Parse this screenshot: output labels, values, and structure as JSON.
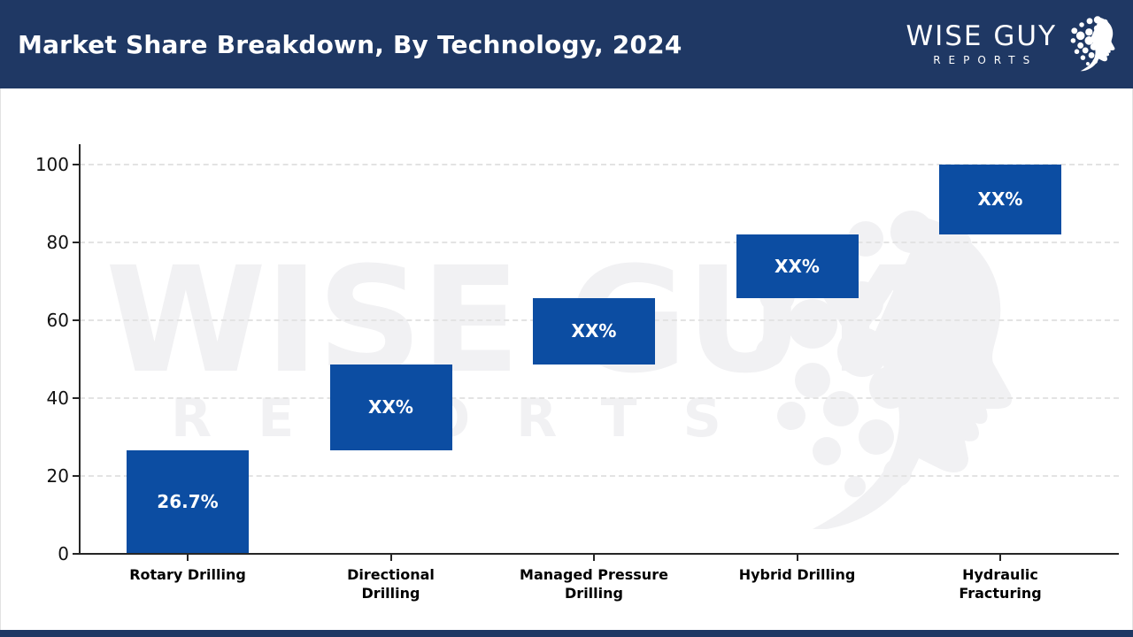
{
  "header": {
    "title": "Market Share Breakdown, By Technology, 2024",
    "logo": {
      "line1": "WISE GUY",
      "line2": "REPORTS"
    }
  },
  "watermark": {
    "line1": "WISE GUY",
    "line2": "REPORTS"
  },
  "colors": {
    "header_bg": "#1f3864",
    "footer_bg": "#1f3864",
    "bar": "#0c4da2",
    "bar_label": "#ffffff",
    "axis": "#262626",
    "gridline": "#e3e3e3",
    "watermark": "#f1f1f3"
  },
  "chart_data": {
    "type": "bar",
    "subtype": "waterfall",
    "title": "Market Share Breakdown, By Technology, 2024",
    "xlabel": "",
    "ylabel": "",
    "ylim": [
      0,
      100
    ],
    "yticks": [
      0,
      20,
      40,
      60,
      80,
      100
    ],
    "grid": "horizontal-dashed",
    "legend": "none",
    "categories": [
      "Rotary Drilling",
      "Directional\nDrilling",
      "Managed Pressure\nDrilling",
      "Hybrid Drilling",
      "Hydraulic\nFracturing"
    ],
    "values": [
      26.7,
      22.0,
      17.0,
      16.4,
      17.9
    ],
    "segments": [
      {
        "category": "Rotary Drilling",
        "start": 0,
        "end": 26.7,
        "label": "26.7%"
      },
      {
        "category": "Directional\nDrilling",
        "start": 26.7,
        "end": 48.7,
        "label": "XX%"
      },
      {
        "category": "Managed Pressure\nDrilling",
        "start": 48.7,
        "end": 65.7,
        "label": "XX%"
      },
      {
        "category": "Hybrid Drilling",
        "start": 65.7,
        "end": 82.1,
        "label": "XX%"
      },
      {
        "category": "Hydraulic\nFracturing",
        "start": 82.1,
        "end": 100,
        "label": "XX%"
      }
    ]
  }
}
